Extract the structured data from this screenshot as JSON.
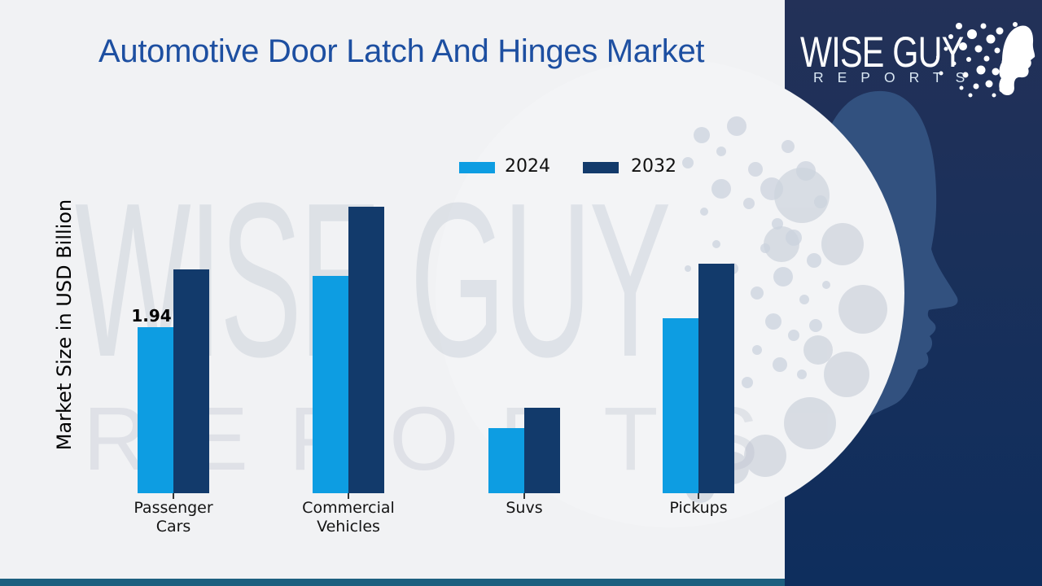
{
  "page": {
    "background": "#f1f2f4",
    "bottom_bar_color": "#1d5f7f"
  },
  "title": {
    "text": "Automotive Door Latch And Hinges Market",
    "color": "#1d4fa1"
  },
  "y_axis_label": "Market Size in USD Billion",
  "legend": {
    "position": "top",
    "items": [
      {
        "label": "2024",
        "color": "#0d9de2"
      },
      {
        "label": "2032",
        "color": "#123a6b"
      }
    ]
  },
  "chart_data": {
    "type": "bar",
    "title": "Automotive Door Latch And Hinges Market",
    "xlabel": "",
    "ylabel": "Market Size in USD Billion",
    "categories": [
      "Passenger Cars",
      "Commercial Vehicles",
      "Suvs",
      "Pickups"
    ],
    "series": [
      {
        "name": "2024",
        "color": "#0d9de2",
        "values": [
          1.94,
          2.54,
          0.76,
          2.04
        ]
      },
      {
        "name": "2032",
        "color": "#123a6b",
        "values": [
          2.62,
          3.35,
          1.0,
          2.68
        ]
      }
    ],
    "data_labels": [
      {
        "category": "Passenger Cars",
        "series": "2024",
        "text": "1.94"
      }
    ],
    "ylim": [
      0,
      3.6
    ],
    "grid": false,
    "legend_position": "top",
    "watermark": "WISE GUY REPORTS"
  },
  "watermark": {
    "line1": "WISE GUY",
    "line2": "REPORTS"
  },
  "brand_panel": {
    "logo_line1": "WISE GUY",
    "logo_line2": "REPORTS",
    "background": "#1b2e5a",
    "face_silhouette_color": "#32517f"
  }
}
